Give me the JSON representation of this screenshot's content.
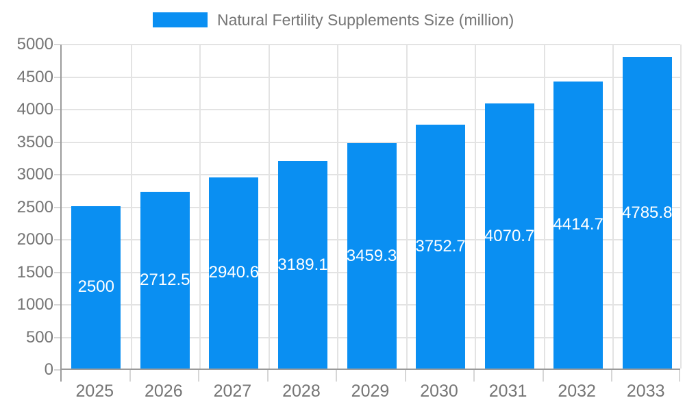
{
  "legend": {
    "label": "Natural Fertility Supplements Size (million)"
  },
  "chart_data": {
    "type": "bar",
    "title": "Natural Fertility Supplements Size (million)",
    "categories": [
      "2025",
      "2026",
      "2027",
      "2028",
      "2029",
      "2030",
      "2031",
      "2032",
      "2033"
    ],
    "values": [
      2500,
      2712.5,
      2940.6,
      3189.1,
      3459.3,
      3752.7,
      4070.7,
      4414.7,
      4785.8
    ],
    "bar_labels": [
      "2500",
      "2712.5",
      "2940.6",
      "3189.1",
      "3459.3",
      "3752.7",
      "4070.7",
      "4414.7",
      "4785.8"
    ],
    "xlabel": "",
    "ylabel": "",
    "ylim": [
      0,
      5000
    ],
    "yticks": [
      0,
      500,
      1000,
      1500,
      2000,
      2500,
      3000,
      3500,
      4000,
      4500,
      5000
    ],
    "grid": true,
    "legend_position": "top",
    "colors": {
      "bar": "#0A8FF2",
      "grid": "#E3E3E3",
      "tick": "#D6D6D6",
      "axis": "#9B9B9B",
      "text": "#757575",
      "bar_label": "#FFFFFF",
      "background": "#FFFFFF"
    }
  }
}
